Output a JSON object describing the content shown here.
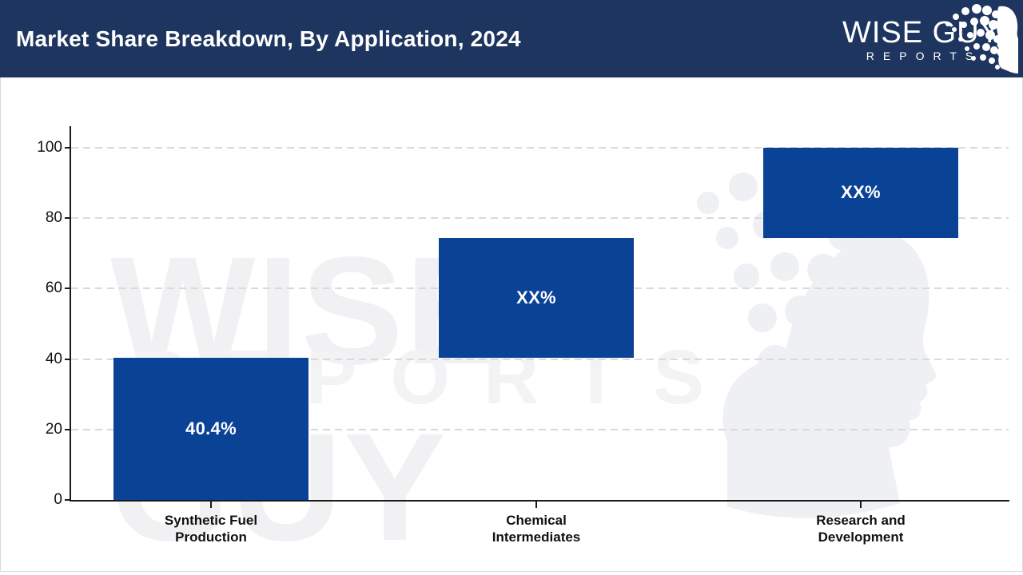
{
  "header": {
    "title": "Market Share Breakdown, By Application, 2024",
    "logo": {
      "line1": "WISE GUY",
      "line2": "REPORTS"
    }
  },
  "watermark": {
    "line1": "WISE GUY",
    "line2": "REPORTS"
  },
  "chart_data": {
    "type": "bar",
    "subtype": "waterfall",
    "title": "Market Share Breakdown, By Application, 2024",
    "categories": [
      "Synthetic Fuel\nProduction",
      "Chemical\nIntermediates",
      "Research and\nDevelopment"
    ],
    "segments": [
      {
        "category": "Synthetic Fuel Production",
        "start": 0,
        "end": 40.4,
        "label": "40.4%"
      },
      {
        "category": "Chemical Intermediates",
        "start": 40.4,
        "end": 74.4,
        "label": "XX%"
      },
      {
        "category": "Research and Development",
        "start": 74.4,
        "end": 100,
        "label": "XX%"
      }
    ],
    "yticks": [
      0,
      20,
      40,
      60,
      80,
      100
    ],
    "ylim": [
      0,
      107
    ],
    "grid": "horizontal-dashed",
    "legend": "none",
    "bar_color": "#0a4296",
    "label_color": "#ffffff",
    "header_color": "#1e355f"
  }
}
